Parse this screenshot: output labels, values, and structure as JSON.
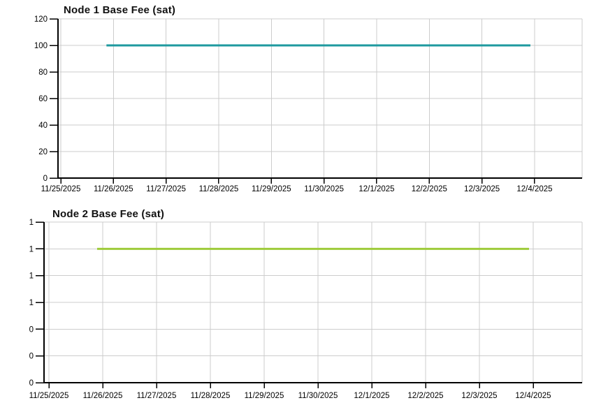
{
  "window": {
    "background": "#ffffff"
  },
  "styles": {
    "axis_color": "#000000",
    "grid_color": "#cccccc",
    "label_color": "#000000",
    "tick_font_px": 11.5
  },
  "chart_data": [
    {
      "type": "line",
      "title": "Node 1 Base Fee (sat)",
      "xlabel": "",
      "ylabel": "",
      "grid": true,
      "legend": "none",
      "ylim": [
        0,
        120
      ],
      "y_tick_labels": [
        "120",
        "100",
        "80",
        "60",
        "40",
        "20",
        "0"
      ],
      "x_tick_labels": [
        "11/25/2025",
        "11/26/2025",
        "11/27/2025",
        "11/28/2025",
        "11/29/2025",
        "11/30/2025",
        "12/1/2025",
        "12/2/2025",
        "12/3/2025",
        "12/4/2025"
      ],
      "series": [
        {
          "name": "Node 1 Base Fee",
          "color": "#1e999f",
          "line_width": 3,
          "x": [
            "11/26/2025",
            "11/27/2025",
            "11/28/2025",
            "11/29/2025",
            "11/30/2025",
            "12/1/2025",
            "12/2/2025",
            "12/3/2025",
            "12/4/2025"
          ],
          "values": [
            100,
            100,
            100,
            100,
            100,
            100,
            100,
            100,
            100
          ]
        }
      ]
    },
    {
      "type": "line",
      "title": "Node 2 Base Fee (sat)",
      "xlabel": "",
      "ylabel": "",
      "grid": true,
      "legend": "none",
      "ylim": [
        0,
        1.2
      ],
      "y_tick_labels": [
        "1",
        "1",
        "1",
        "1",
        "0",
        "0",
        "0"
      ],
      "x_tick_labels": [
        "11/25/2025",
        "11/26/2025",
        "11/27/2025",
        "11/28/2025",
        "11/29/2025",
        "11/30/2025",
        "12/1/2025",
        "12/2/2025",
        "12/3/2025",
        "12/4/2025"
      ],
      "series": [
        {
          "name": "Node 2 Base Fee",
          "color": "#9ecb3b",
          "line_width": 3,
          "x": [
            "11/26/2025",
            "11/27/2025",
            "11/28/2025",
            "11/29/2025",
            "11/30/2025",
            "12/1/2025",
            "12/2/2025",
            "12/3/2025",
            "12/4/2025"
          ],
          "values": [
            1,
            1,
            1,
            1,
            1,
            1,
            1,
            1,
            1
          ]
        }
      ]
    }
  ]
}
